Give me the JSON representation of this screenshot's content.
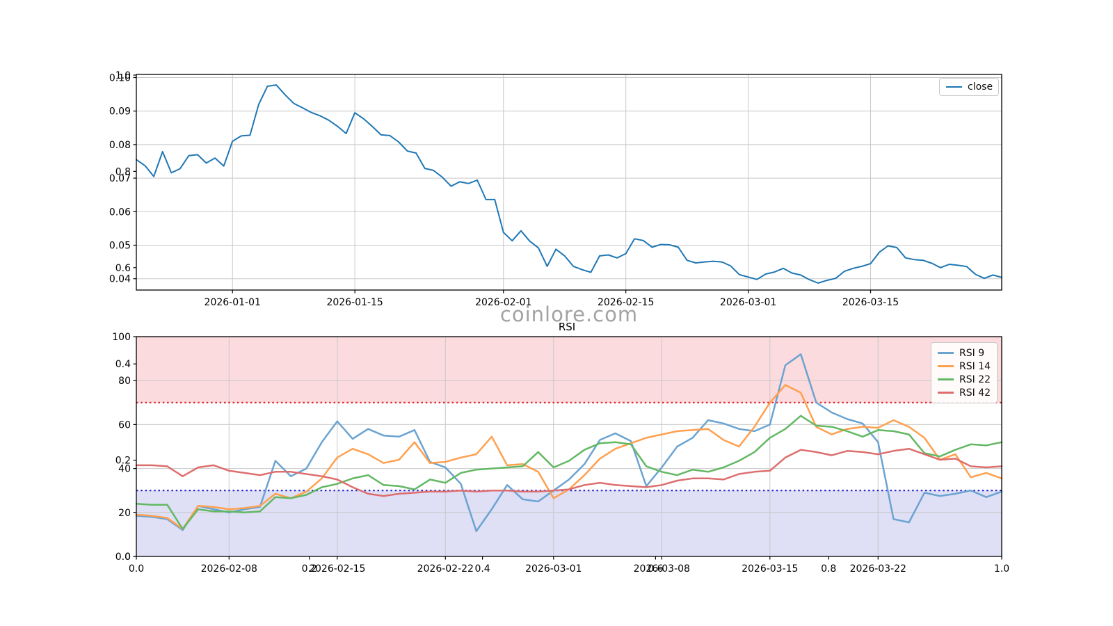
{
  "watermark": "coinlore.com",
  "colors": {
    "close": "#1f77b4",
    "rsi9": "#6ba3d1",
    "rsi14": "#ffa04f",
    "rsi22": "#63b863",
    "rsi42": "#dd6e6e",
    "overbought_line": "#e02028",
    "oversold_line": "#2121cd",
    "overbought_band": "#fbdbde",
    "oversold_band": "#dfdff6",
    "grid": "#c8c8c8",
    "spine": "#000000"
  },
  "chart_data": [
    {
      "type": "line",
      "name": "price",
      "title": "",
      "ylim": [
        0.0366,
        0.1009
      ],
      "legend_position": "upper right",
      "grid": true,
      "yticks": [
        {
          "v": 0.04,
          "label": "0.04"
        },
        {
          "v": 0.05,
          "label": "0.05"
        },
        {
          "v": 0.06,
          "label": "0.06"
        },
        {
          "v": 0.07,
          "label": "0.07"
        },
        {
          "v": 0.08,
          "label": "0.08"
        },
        {
          "v": 0.09,
          "label": "0.09"
        },
        {
          "v": 0.1,
          "label": "0.10"
        }
      ],
      "xticks": [
        {
          "i": 11,
          "label": "2026-01-01"
        },
        {
          "i": 25,
          "label": "2026-01-15"
        },
        {
          "i": 42,
          "label": "2026-02-01"
        },
        {
          "i": 56,
          "label": "2026-02-15"
        },
        {
          "i": 70,
          "label": "2026-03-01"
        },
        {
          "i": 84,
          "label": "2026-03-15"
        }
      ],
      "series": [
        {
          "name": "close",
          "color_key": "close",
          "width": 2,
          "values": [
            0.0755,
            0.0737,
            0.0705,
            0.0779,
            0.0716,
            0.0728,
            0.0767,
            0.077,
            0.0745,
            0.076,
            0.0736,
            0.081,
            0.0826,
            0.0828,
            0.092,
            0.0974,
            0.0978,
            0.0949,
            0.0923,
            0.091,
            0.0896,
            0.0886,
            0.0873,
            0.0855,
            0.0833,
            0.0895,
            0.0877,
            0.0854,
            0.0829,
            0.0827,
            0.0808,
            0.0781,
            0.0775,
            0.0729,
            0.0723,
            0.0703,
            0.0676,
            0.0689,
            0.0684,
            0.0694,
            0.0636,
            0.0636,
            0.0538,
            0.0513,
            0.0543,
            0.0512,
            0.0492,
            0.0437,
            0.0488,
            0.0468,
            0.0437,
            0.0427,
            0.0419,
            0.0468,
            0.0471,
            0.0462,
            0.0475,
            0.0519,
            0.0514,
            0.0494,
            0.0502,
            0.0501,
            0.0494,
            0.0455,
            0.0447,
            0.045,
            0.0452,
            0.045,
            0.0438,
            0.0412,
            0.0405,
            0.0398,
            0.0414,
            0.042,
            0.0431,
            0.0417,
            0.0411,
            0.0397,
            0.0387,
            0.0395,
            0.0401,
            0.0422,
            0.0431,
            0.0437,
            0.0445,
            0.0479,
            0.0498,
            0.0493,
            0.0462,
            0.0457,
            0.0455,
            0.0446,
            0.0433,
            0.0443,
            0.044,
            0.0436,
            0.0413,
            0.0401,
            0.0411,
            0.0404
          ]
        }
      ],
      "legend": [
        {
          "label": "close",
          "color_key": "close",
          "sample_width": 2
        }
      ]
    },
    {
      "type": "line",
      "name": "rsi",
      "title": "RSI",
      "ylim": [
        0,
        100
      ],
      "legend_position": "upper right",
      "grid": true,
      "yticks": [
        {
          "v": 0,
          "label": "0"
        },
        {
          "v": 20,
          "label": "20"
        },
        {
          "v": 40,
          "label": "40"
        },
        {
          "v": 60,
          "label": "60"
        },
        {
          "v": 80,
          "label": "80"
        },
        {
          "v": 100,
          "label": "100"
        }
      ],
      "xticks": [
        {
          "i": 6,
          "label": "2026-02-08"
        },
        {
          "i": 13,
          "label": "2026-02-15"
        },
        {
          "i": 20,
          "label": "2026-02-22"
        },
        {
          "i": 27,
          "label": "2026-03-01"
        },
        {
          "i": 34,
          "label": "2026-03-08"
        },
        {
          "i": 41,
          "label": "2026-03-15"
        },
        {
          "i": 48,
          "label": "2026-03-22"
        }
      ],
      "bands": [
        {
          "from": 70,
          "to": 100,
          "color_key": "overbought_band",
          "name": "overbought-band"
        },
        {
          "from": 0,
          "to": 30,
          "color_key": "oversold_band",
          "name": "oversold-band"
        }
      ],
      "hlines": [
        {
          "y": 70,
          "color_key": "overbought_line",
          "style": "dotted",
          "name": "overbought-threshold"
        },
        {
          "y": 30,
          "color_key": "oversold_line",
          "style": "dotted",
          "name": "oversold-threshold"
        }
      ],
      "series": [
        {
          "name": "RSI 9",
          "color_key": "rsi9",
          "width": 2.5,
          "values": [
            18.5,
            18,
            17,
            12,
            23,
            21.5,
            20,
            21.5,
            22.5,
            43.5,
            36.5,
            40,
            52,
            61.5,
            53.5,
            58,
            55,
            54.5,
            57.5,
            43,
            40.5,
            33,
            11.5,
            21.5,
            32.5,
            26,
            25,
            30,
            35,
            42,
            53,
            56,
            52.5,
            32,
            40.5,
            50,
            54,
            62,
            60.5,
            58,
            57,
            60,
            87,
            92,
            70,
            65.5,
            62.5,
            60.5,
            52,
            17,
            15.5,
            29,
            27.5,
            28.5,
            30,
            27,
            29.5
          ]
        },
        {
          "name": "RSI 14",
          "color_key": "rsi14",
          "width": 2.5,
          "values": [
            19,
            18.5,
            17.5,
            12.5,
            23,
            22.5,
            21.5,
            22,
            23,
            28.5,
            26.5,
            29.5,
            35.5,
            45,
            49,
            46.5,
            42.5,
            44,
            52,
            42.5,
            43,
            45,
            46.5,
            54.5,
            41.5,
            42,
            38.5,
            26.5,
            30.5,
            37,
            44.5,
            49,
            51.5,
            54,
            55.5,
            57,
            57.5,
            58,
            53,
            50,
            59,
            70,
            78,
            74.5,
            59,
            55.5,
            58,
            59,
            58.5,
            62,
            59,
            54,
            44,
            46.5,
            36,
            38,
            35.5
          ]
        },
        {
          "name": "RSI 22",
          "color_key": "rsi22",
          "width": 2.5,
          "values": [
            24,
            23.5,
            23.5,
            12.5,
            21.5,
            20.5,
            20.5,
            20,
            20.5,
            27,
            26.5,
            28,
            31.5,
            33,
            35.5,
            37,
            32.5,
            32,
            30.5,
            35,
            33.5,
            38,
            39.5,
            40,
            40.5,
            41,
            47.5,
            40.5,
            43.5,
            48.5,
            51.5,
            52,
            51,
            41,
            38.5,
            37,
            39.5,
            38.5,
            40.5,
            43.5,
            47.5,
            54,
            58,
            64,
            59.5,
            59,
            57,
            54.5,
            57.5,
            57,
            55.5,
            47,
            45.5,
            48.5,
            51,
            50.5,
            52
          ]
        },
        {
          "name": "RSI 42",
          "color_key": "rsi42",
          "width": 2.5,
          "values": [
            41.5,
            41.5,
            41,
            36.5,
            40.5,
            41.5,
            39,
            38,
            37,
            38.5,
            38.5,
            37.5,
            36.5,
            35,
            31.5,
            28.5,
            27.5,
            28.5,
            29,
            29.5,
            29.5,
            30,
            29.5,
            30,
            30,
            29.5,
            29.5,
            30,
            30.5,
            32.5,
            33.5,
            32.5,
            32,
            31.5,
            32.5,
            34.5,
            35.5,
            35.5,
            35,
            37.5,
            38.5,
            39,
            45,
            48.5,
            47.5,
            46,
            48,
            47.5,
            46.5,
            48,
            49,
            46.5,
            44,
            44.5,
            41,
            40.5,
            41
          ]
        }
      ],
      "legend": [
        {
          "label": "RSI 9",
          "color_key": "rsi9",
          "sample_width": 3
        },
        {
          "label": "RSI 14",
          "color_key": "rsi14",
          "sample_width": 3
        },
        {
          "label": "RSI 22",
          "color_key": "rsi22",
          "sample_width": 3
        },
        {
          "label": "RSI 42",
          "color_key": "rsi42",
          "sample_width": 3
        }
      ]
    }
  ],
  "overlay_axis": {
    "xticks": [
      {
        "f": 0.0,
        "label": "0.0"
      },
      {
        "f": 0.2,
        "label": "0.2"
      },
      {
        "f": 0.4,
        "label": "0.4"
      },
      {
        "f": 0.6,
        "label": "0.6"
      },
      {
        "f": 0.8,
        "label": "0.8"
      },
      {
        "f": 1.0,
        "label": "1.0"
      }
    ],
    "yticks": [
      {
        "f": 0.0,
        "label": "0.0"
      },
      {
        "f": 0.2,
        "label": "0.2"
      },
      {
        "f": 0.4,
        "label": "0.4"
      },
      {
        "f": 0.6,
        "label": "0.6"
      },
      {
        "f": 0.8,
        "label": "0.8"
      },
      {
        "f": 1.0,
        "label": "1.0"
      }
    ]
  }
}
